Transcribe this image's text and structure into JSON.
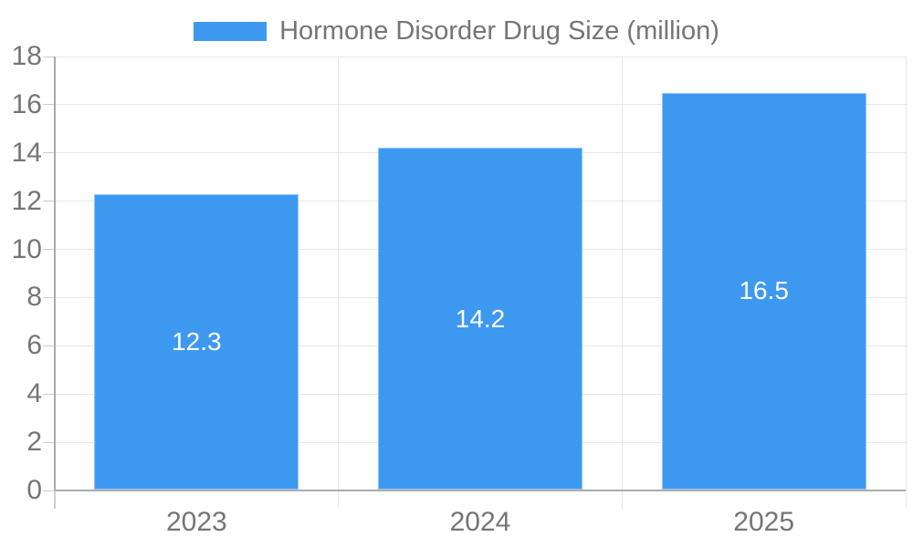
{
  "chart_data": {
    "type": "bar",
    "title": "Hormone Disorder Drug Size (million)",
    "legend": {
      "position": "top",
      "label": "Hormone Disorder Drug Size (million)"
    },
    "categories": [
      "2023",
      "2024",
      "2025"
    ],
    "series": [
      {
        "name": "Hormone Disorder Drug Size (million)",
        "values": [
          12.3,
          14.2,
          16.5
        ]
      }
    ],
    "value_labels": [
      "12.3",
      "14.2",
      "16.5"
    ],
    "xlabel": "",
    "ylabel": "",
    "ylim": [
      0,
      18
    ],
    "yticks": [
      0,
      2,
      4,
      6,
      8,
      10,
      12,
      14,
      16,
      18
    ],
    "grid": true,
    "colors": {
      "bar": "#3D99F0",
      "value_label": "#ffffff",
      "axis_text": "#757575",
      "legend_text": "#757575",
      "gridline": "#e6e6e6",
      "axis_line": "#ababab",
      "tick_stub": "#cccccc",
      "background": "#ffffff"
    }
  }
}
